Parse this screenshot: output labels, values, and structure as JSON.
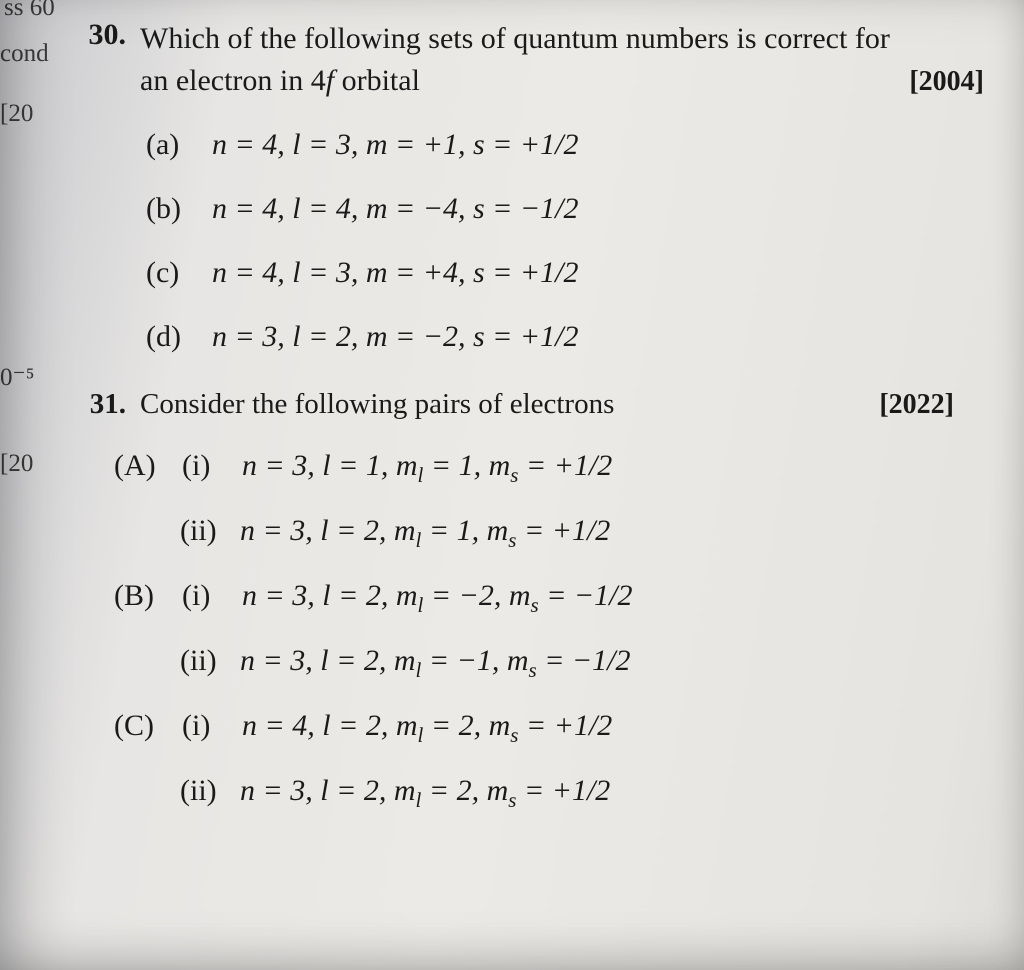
{
  "edge": {
    "t1": "ss 60",
    "t2": "cond",
    "t3": "[20",
    "t4": "0⁻⁵",
    "t5": "[20"
  },
  "q30": {
    "number": "30.",
    "stem_a": "Which of the following sets of quantum numbers is correct for",
    "stem_b": "an electron in 4",
    "stem_c": "f",
    "stem_d": " orbital",
    "year": "[2004]",
    "opts": {
      "a": {
        "label": "(a)",
        "math": "n = 4, l = 3, m = +1, s = +1/2"
      },
      "b": {
        "label": "(b)",
        "math": "n = 4, l = 4, m = −4, s = −1/2"
      },
      "c": {
        "label": "(c)",
        "math": "n = 4, l = 3, m = +4, s = +1/2"
      },
      "d": {
        "label": "(d)",
        "math": "n = 3, l = 2, m = −2, s = +1/2"
      }
    }
  },
  "q31": {
    "number": "31.",
    "stem": "Consider the following pairs of electrons",
    "year": "[2022]",
    "pairs": {
      "A": {
        "outer": "(A)",
        "i": {
          "inner": "(i)",
          "pre": "n = 3, l = 1, m",
          "mid": " = 1, m",
          "post": " = +1/2"
        },
        "ii": {
          "inner": "(ii)",
          "pre": "n = 3, l = 2, m",
          "mid": " = 1, m",
          "post": " = +1/2"
        }
      },
      "B": {
        "outer": "(B)",
        "i": {
          "inner": "(i)",
          "pre": "n = 3, l = 2, m",
          "mid": " = −2, m",
          "post": " = −1/2"
        },
        "ii": {
          "inner": "(ii)",
          "pre": "n = 3, l = 2, m",
          "mid": " = −1, m",
          "post": " = −1/2"
        }
      },
      "C": {
        "outer": "(C)",
        "i": {
          "inner": "(i)",
          "pre": "n = 4, l = 2, m",
          "mid": " = 2, m",
          "post": " = +1/2"
        },
        "ii": {
          "inner": "(ii)",
          "pre": "n = 3, l = 2, m",
          "mid": " = 2, m",
          "post": " = +1/2"
        }
      }
    },
    "sub_l": "l",
    "sub_s": "s"
  }
}
